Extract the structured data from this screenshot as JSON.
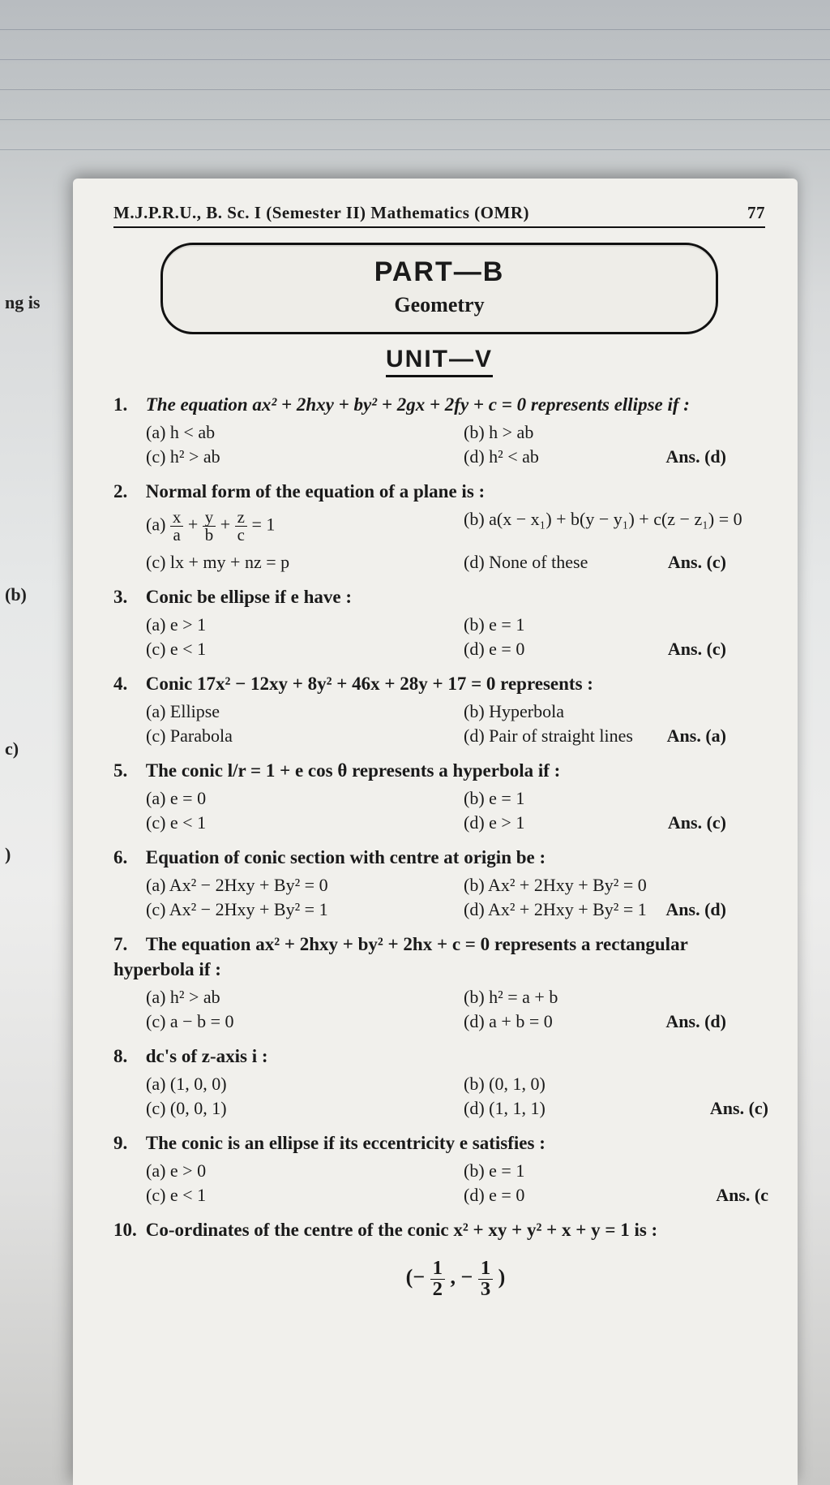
{
  "header": {
    "left": "M.J.P.R.U., B. Sc. I (Semester II) Mathematics (OMR)",
    "page_number": "77"
  },
  "part": {
    "title": "PART—B",
    "subtitle": "Geometry"
  },
  "unit": "UNIT—V",
  "margin_labels": {
    "ngis": "ng is",
    "b": "(b)",
    "c": "c)",
    "paren1": ")"
  },
  "questions": [
    {
      "num": "1.",
      "text": "The equation ax² + 2hxy + by² + 2gx + 2fy + c = 0 represents ellipse if :",
      "opts": [
        "(a) h < ab",
        "(b) h > ab",
        "(c) h² > ab",
        "(d) h² < ab"
      ],
      "ans": "Ans. (d)"
    },
    {
      "num": "2.",
      "text": "Normal form of the equation of a plane is :",
      "opts_html": true,
      "ans": "Ans. (c)"
    },
    {
      "num": "3.",
      "text": "Conic be ellipse if e have :",
      "opts": [
        "(a) e > 1",
        "(b) e = 1",
        "(c) e < 1",
        "(d) e = 0"
      ],
      "ans": "Ans. (c)"
    },
    {
      "num": "4.",
      "text": "Conic 17x² − 12xy + 8y² + 46x + 28y + 17 = 0 represents :",
      "opts": [
        "(a) Ellipse",
        "(b) Hyperbola",
        "(c) Parabola",
        "(d) Pair of straight lines"
      ],
      "ans": "Ans. (a)"
    },
    {
      "num": "5.",
      "text": "The conic l/r = 1 + e cos θ represents a hyperbola if :",
      "opts": [
        "(a) e = 0",
        "(b) e = 1",
        "(c) e < 1",
        "(d) e > 1"
      ],
      "ans": "Ans. (c)"
    },
    {
      "num": "6.",
      "text": "Equation of conic section with centre at origin be :",
      "opts": [
        "(a) Ax² − 2Hxy + By² = 0",
        "(b) Ax² + 2Hxy + By² = 0",
        "(c) Ax² − 2Hxy + By² = 1",
        "(d) Ax² + 2Hxy + By² = 1"
      ],
      "ans": "Ans. (d)"
    },
    {
      "num": "7.",
      "text": "The equation ax² + 2hxy + by² + 2hx + c = 0 represents a rectangular hyperbola if :",
      "opts": [
        "(a) h² > ab",
        "(b) h² = a + b",
        "(c) a − b = 0",
        "(d) a + b = 0"
      ],
      "ans": "Ans. (d)"
    },
    {
      "num": "8.",
      "text": "dc's of z-axis i :",
      "opts": [
        "(a) (1, 0, 0)",
        "(b) (0, 1, 0)",
        "(c) (0, 0, 1)",
        "(d) (1, 1, 1)"
      ],
      "ans": "Ans. (c)",
      "ans_edge": true
    },
    {
      "num": "9.",
      "text": "The conic is an ellipse if its eccentricity e satisfies :",
      "opts": [
        "(a) e > 0",
        "(b) e = 1",
        "(c) e < 1",
        "(d) e = 0"
      ],
      "ans": "Ans. (c",
      "ans_edge": true
    },
    {
      "num": "10.",
      "text": "Co-ordinates of the centre of the conic x² + xy + y² + x + y = 1 is :"
    }
  ],
  "q2_opts": {
    "a_prefix": "(a) ",
    "b": "(b) a(x − x₁) + b(y − y₁) + c(z − z₁) = 0",
    "c": "(c) lx + my + nz = p",
    "d": "(d) None of these"
  },
  "cutoff_frac": {
    "open": "(−",
    "n1": "1",
    "d1": "2",
    "sep": ", −",
    "n2": "1",
    "d2": "3",
    "close": ")"
  },
  "colors": {
    "text": "#1a1a1a",
    "paper": "#f1f0ec",
    "rule": "#111111"
  }
}
